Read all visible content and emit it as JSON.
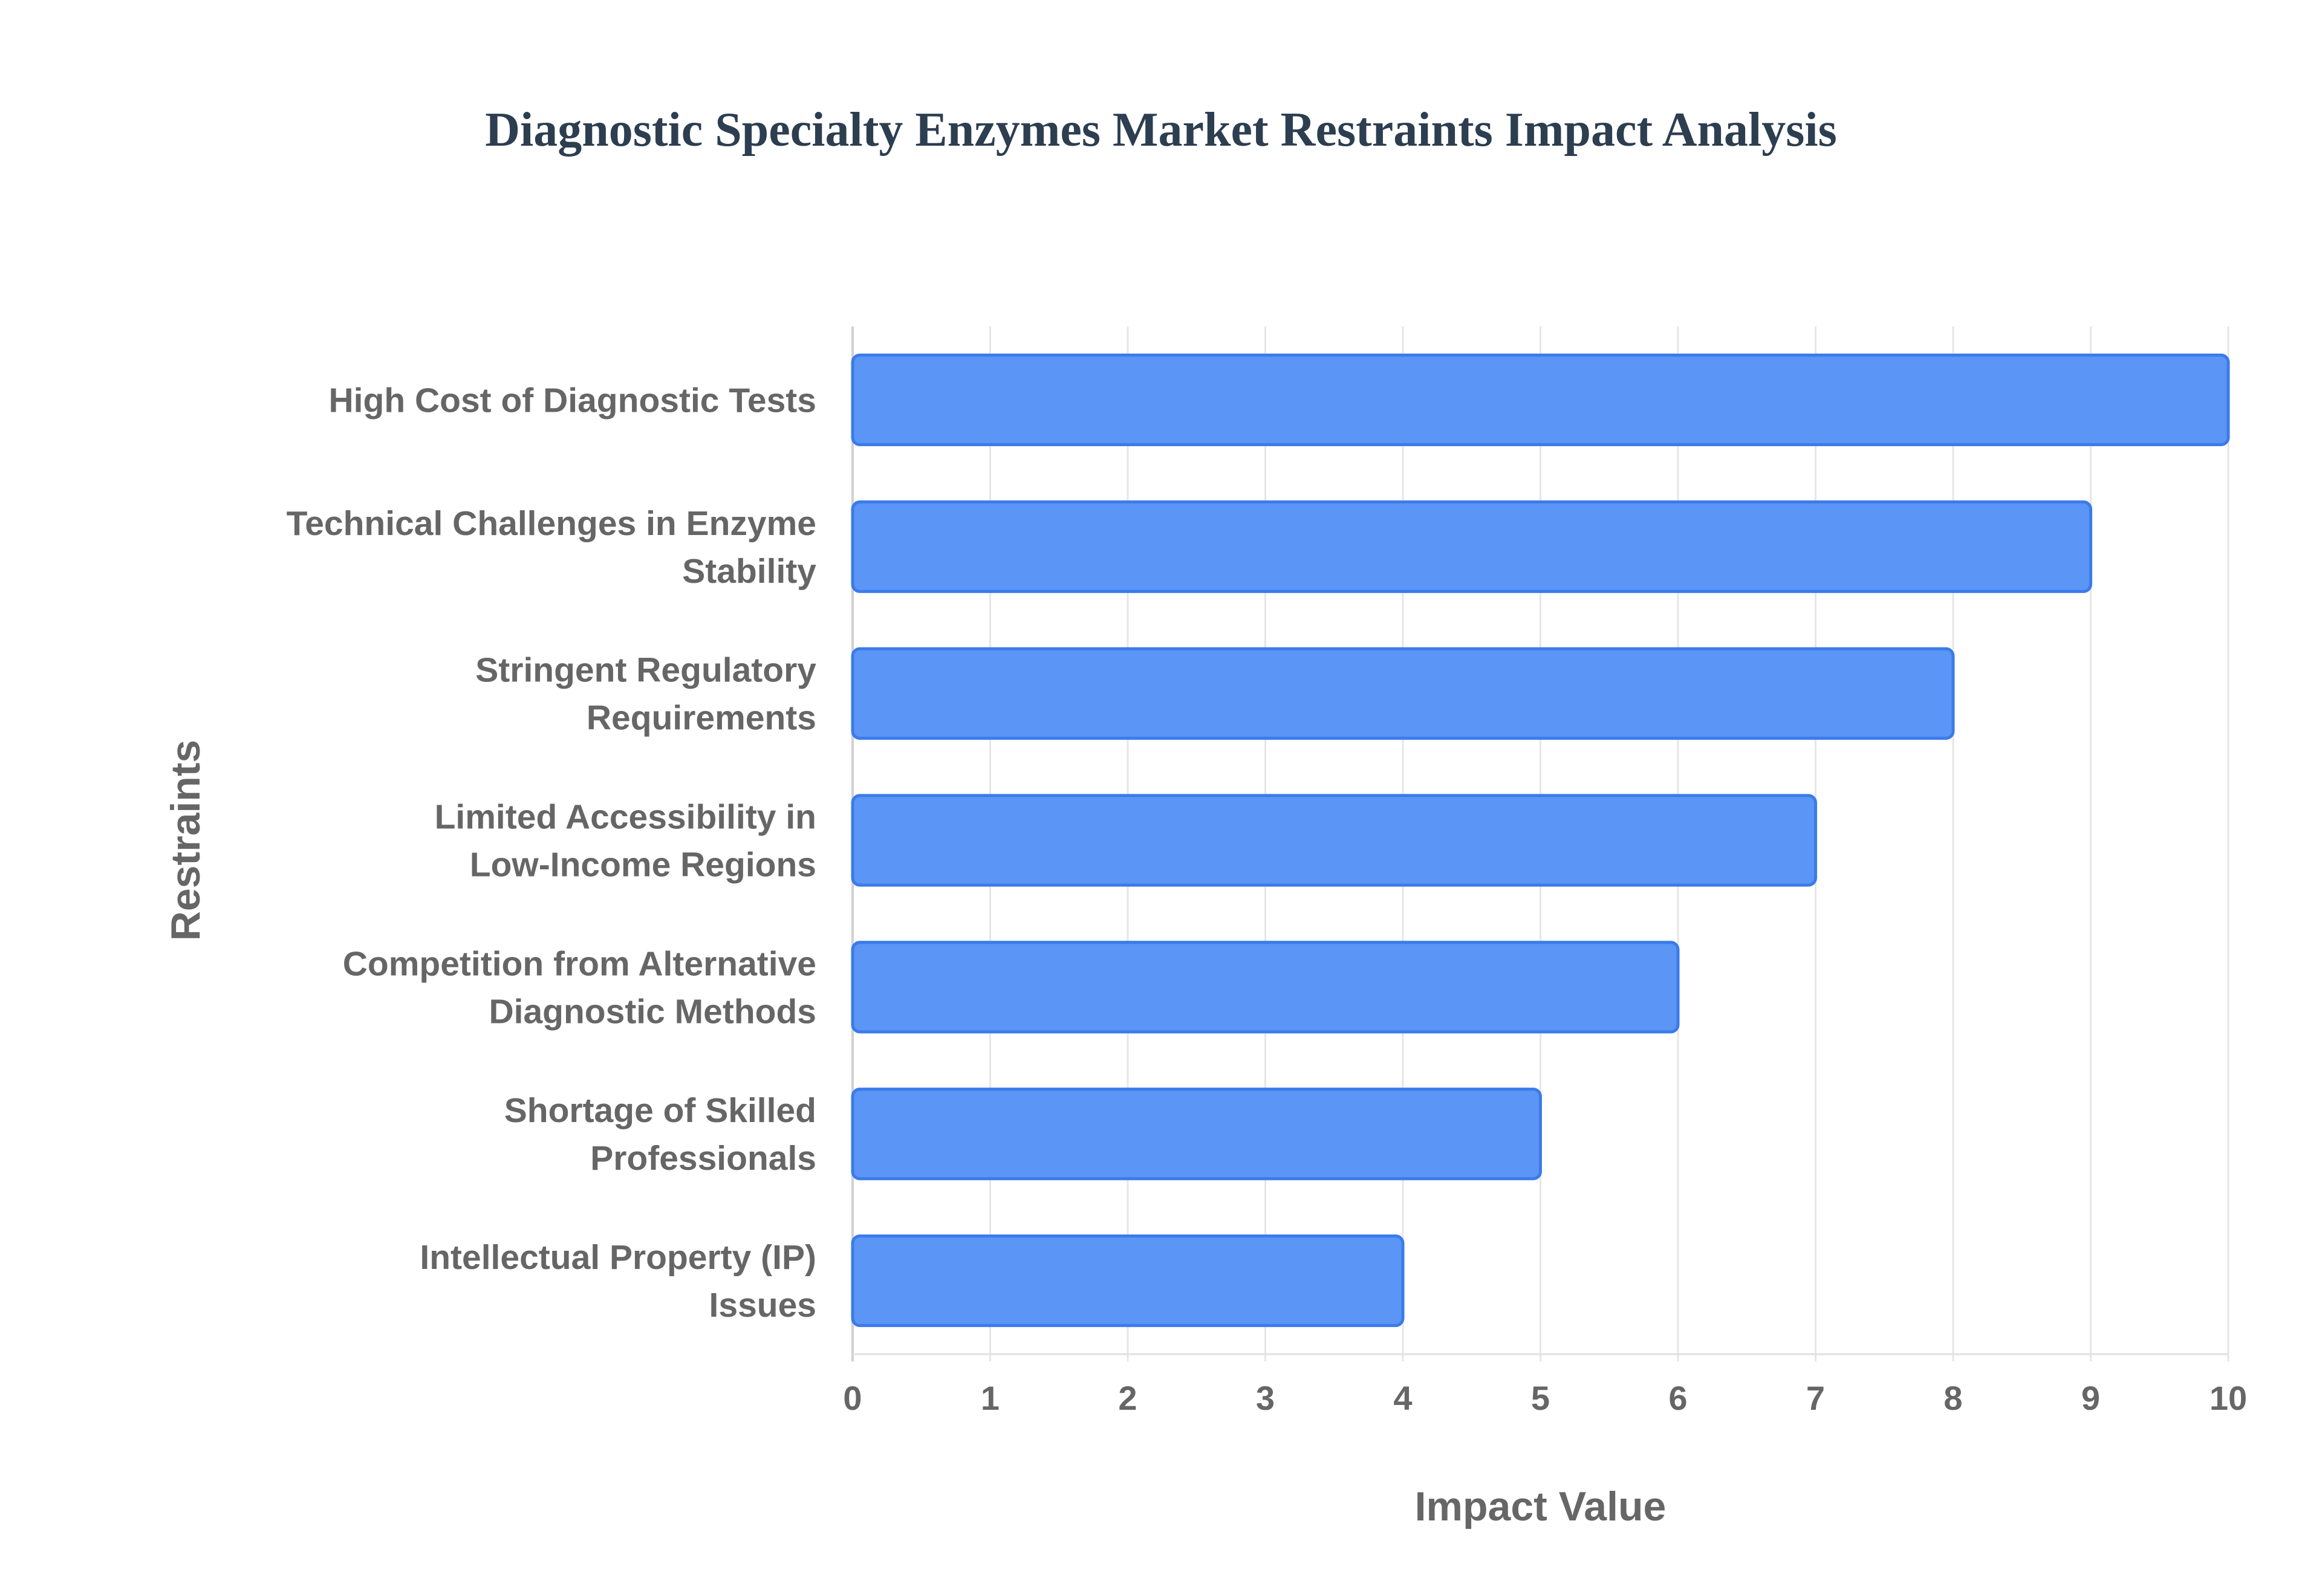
{
  "chart_data": {
    "type": "bar",
    "orientation": "horizontal",
    "title": "Diagnostic Specialty Enzymes Market Restraints Impact Analysis",
    "xlabel": "Impact Value",
    "ylabel": "Restraints",
    "xlim": [
      0,
      10
    ],
    "x_ticks": [
      "0",
      "1",
      "2",
      "3",
      "4",
      "5",
      "6",
      "7",
      "8",
      "9",
      "10"
    ],
    "grid": true,
    "legend": "none",
    "bar_color": "#5b95f5",
    "bar_border_color": "#3b7bea",
    "categories": [
      [
        "High Cost of Diagnostic Tests"
      ],
      [
        "Technical Challenges in Enzyme",
        "Stability"
      ],
      [
        "Stringent Regulatory",
        "Requirements"
      ],
      [
        "Limited Accessibility in",
        "Low-Income Regions"
      ],
      [
        "Competition from Alternative",
        "Diagnostic Methods"
      ],
      [
        "Shortage of Skilled",
        "Professionals"
      ],
      [
        "Intellectual Property (IP)",
        "Issues"
      ]
    ],
    "values": [
      10,
      9,
      8,
      7,
      6,
      5,
      4
    ]
  }
}
